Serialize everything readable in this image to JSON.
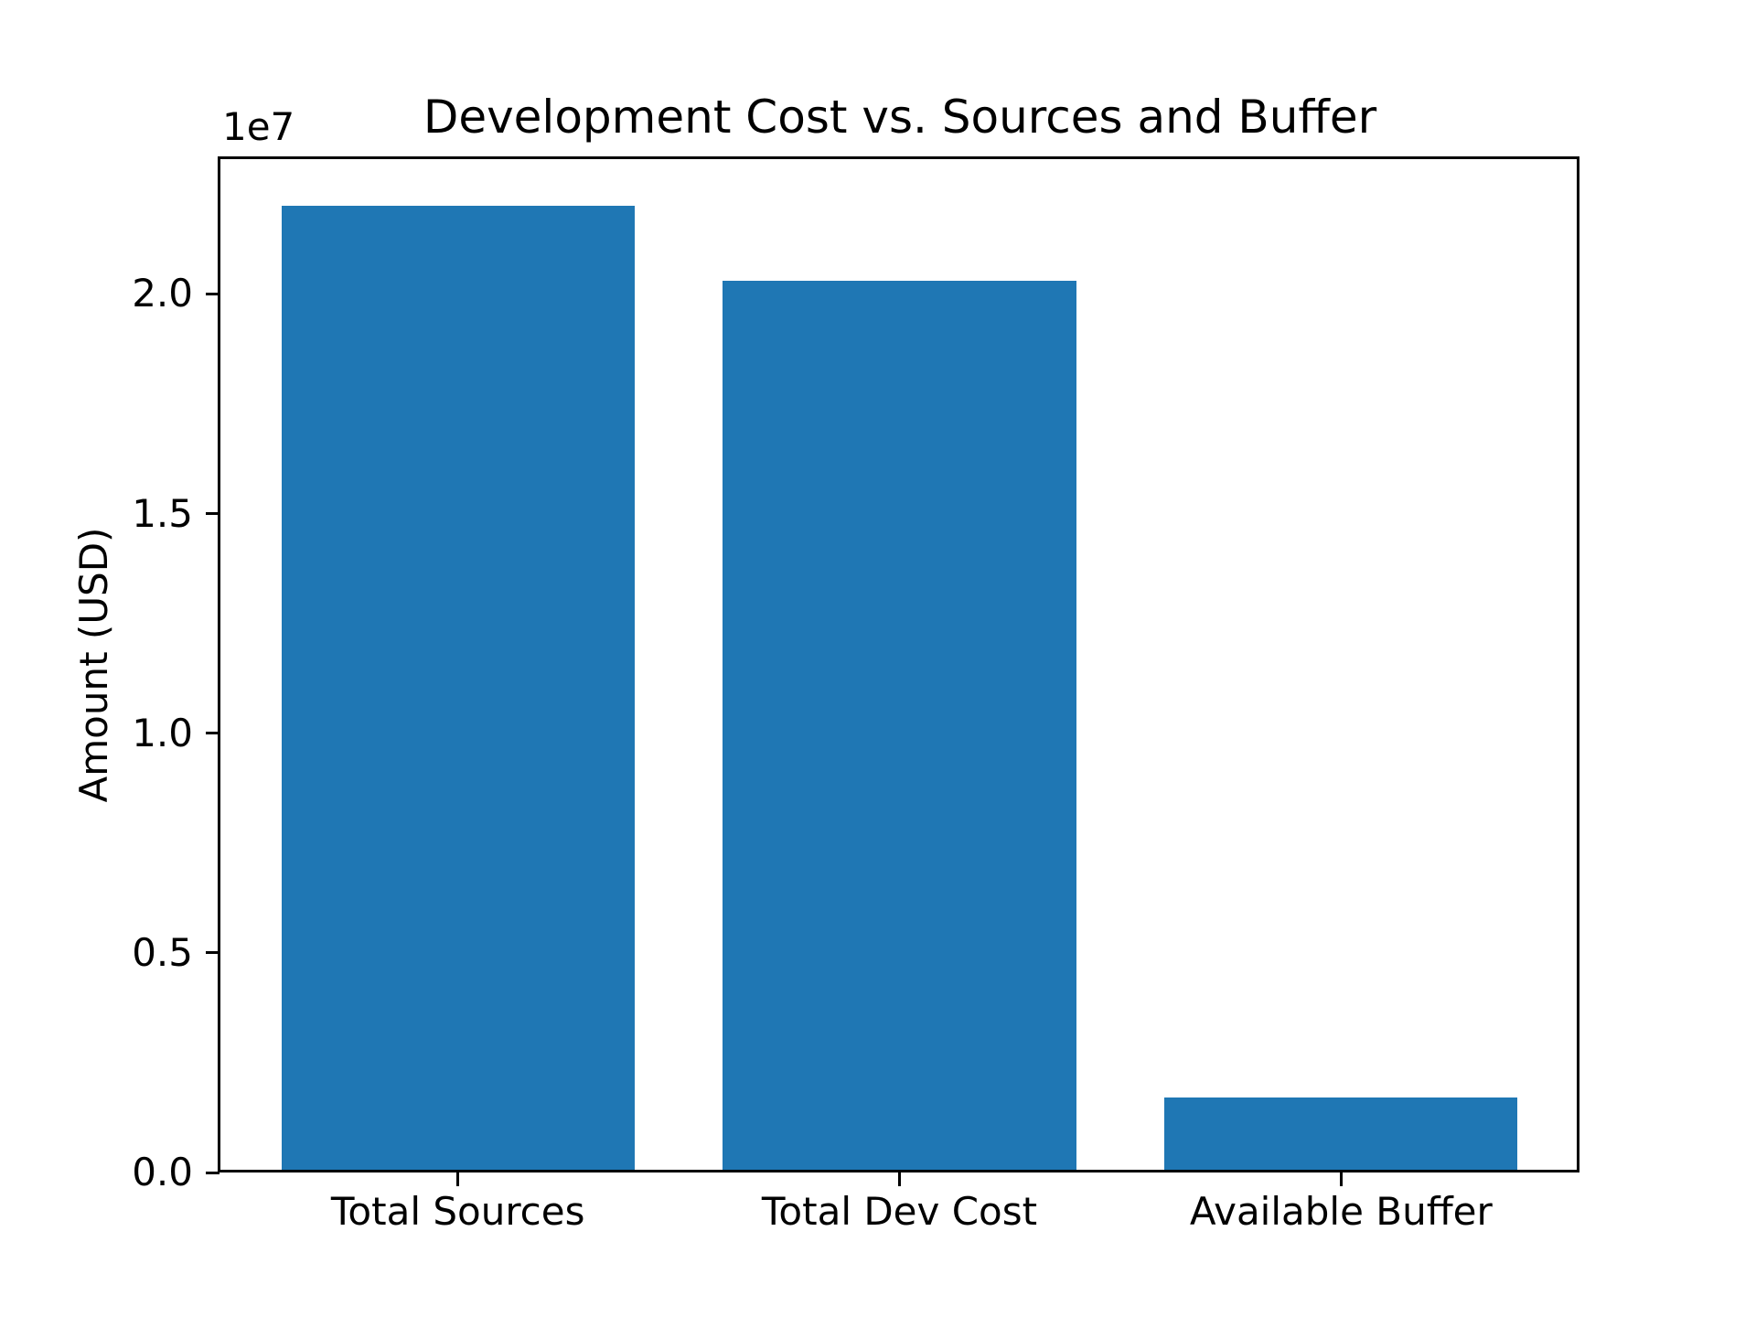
{
  "chart_data": {
    "type": "bar",
    "title": "Development Cost vs. Sources and Buffer",
    "xlabel": "",
    "ylabel": "Amount (USD)",
    "categories": [
      "Total Sources",
      "Total Dev Cost",
      "Available Buffer"
    ],
    "values": [
      22000000,
      20300000,
      1700000
    ],
    "ylim": [
      0,
      23100000
    ],
    "yticks": [
      0,
      5000000,
      10000000,
      15000000,
      20000000
    ],
    "ytick_labels": [
      "0.0",
      "0.5",
      "1.0",
      "1.5",
      "2.0"
    ],
    "y_offset_label": "1e7",
    "bar_color": "#1f77b4",
    "grid": false,
    "legend_position": "none"
  }
}
